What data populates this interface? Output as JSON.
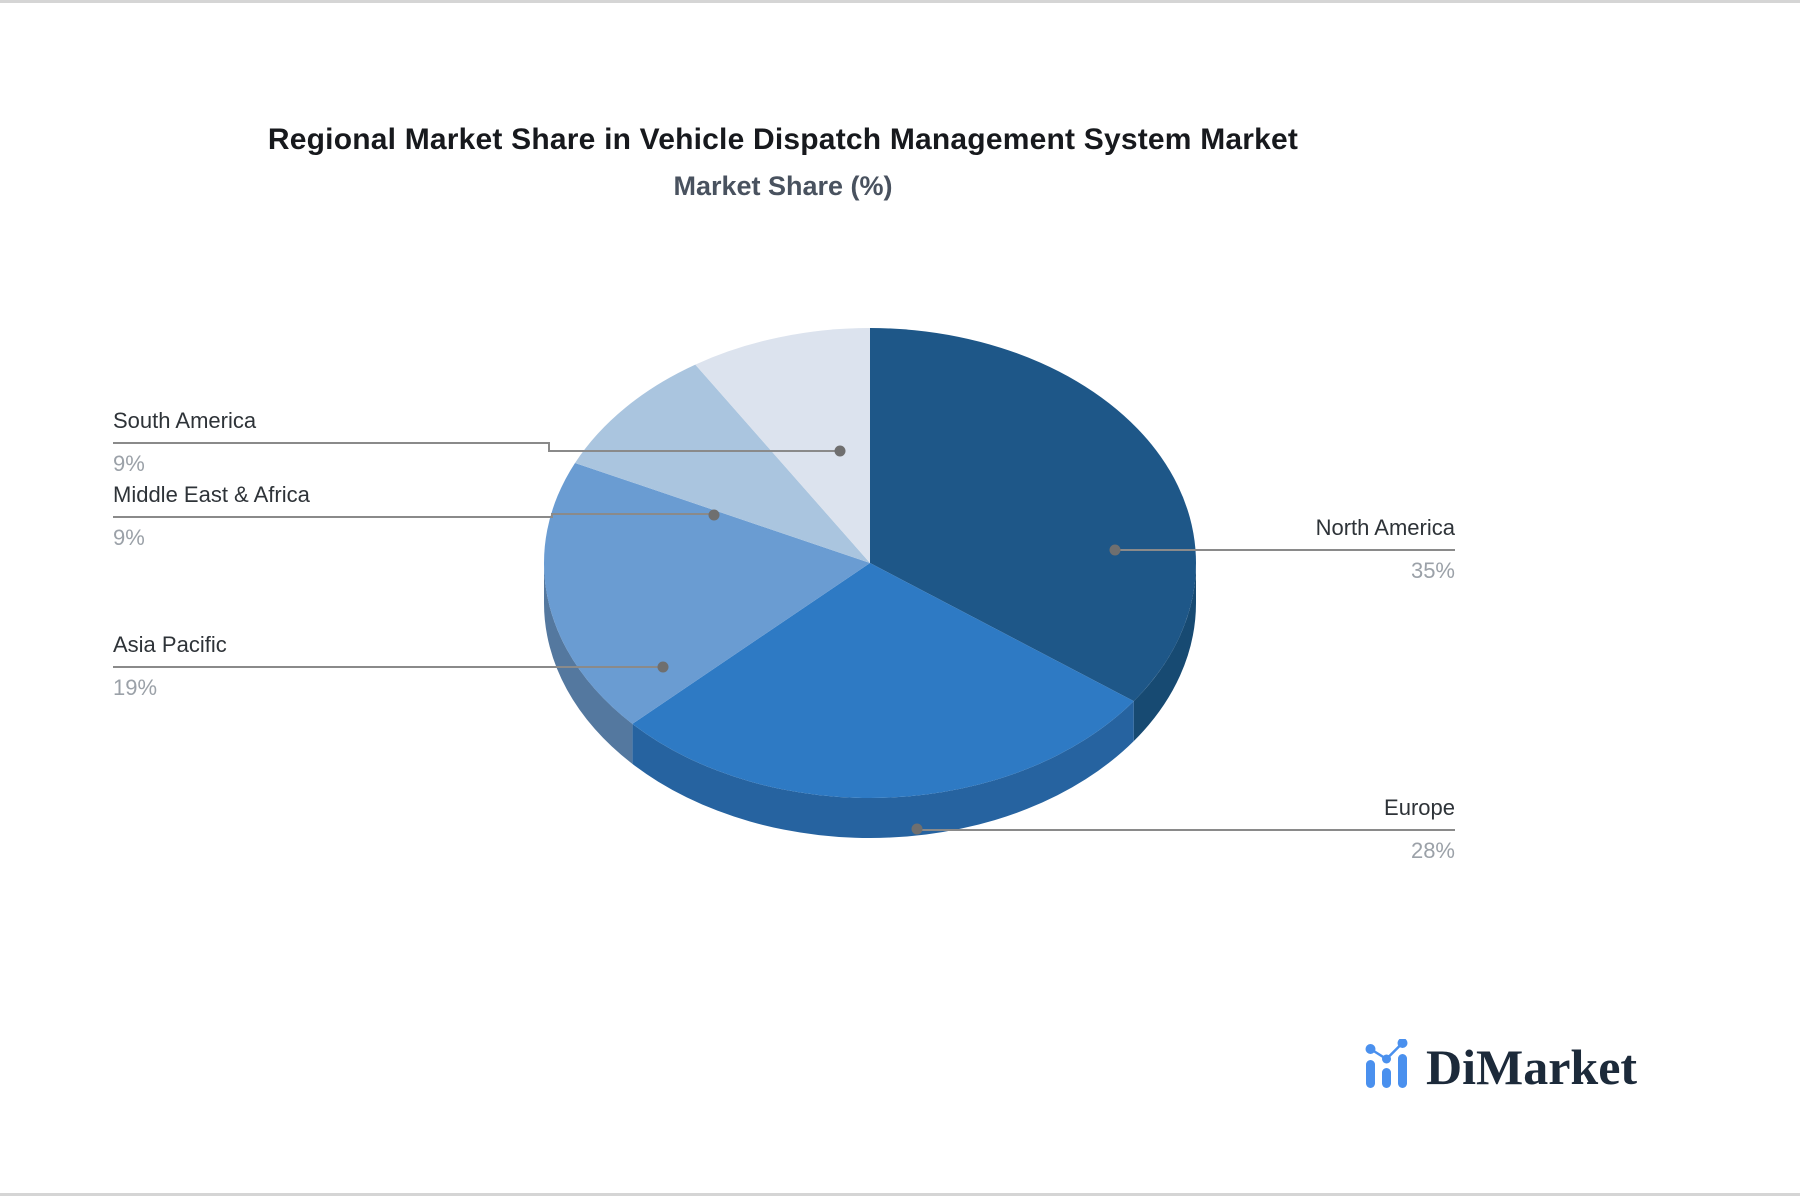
{
  "title": "Regional Market Share in Vehicle Dispatch Management System Market",
  "subtitle": "Market Share (%)",
  "chart_data": {
    "type": "pie",
    "style": "3d",
    "title": "Regional Market Share in Vehicle Dispatch Management System Market",
    "subtitle": "Market Share (%)",
    "unit": "%",
    "start_angle": "12-oclock",
    "direction": "clockwise",
    "legend": "none (leader-line labels)",
    "slices": [
      {
        "label": "North America",
        "value": 35,
        "value_label": "35%",
        "color": "#1E5788",
        "side_color": "#174A72",
        "label_side": "right"
      },
      {
        "label": "Europe",
        "value": 28,
        "value_label": "28%",
        "color": "#2E7AC4",
        "side_color": "#2663A0",
        "label_side": "right"
      },
      {
        "label": "Asia Pacific",
        "value": 19,
        "value_label": "19%",
        "color": "#6A9CD2",
        "side_color": "#54789F",
        "label_side": "left"
      },
      {
        "label": "Middle East & Africa",
        "value": 9,
        "value_label": "9%",
        "color": "#AAC5DF",
        "side_color": "#8FA6BA",
        "label_side": "left"
      },
      {
        "label": "South America",
        "value": 9,
        "value_label": "9%",
        "color": "#DCE3EE",
        "side_color": "#B9C1CE",
        "label_side": "left"
      }
    ],
    "leader_line_color": "#8a8a8a",
    "leader_dot_color": "#6f6f6f"
  },
  "branding": {
    "logo_text": "DiMarket",
    "logo_icon": "bar-line-chart-icon",
    "icon_color": "#4A90EE",
    "text_color": "#1C2A3A"
  }
}
